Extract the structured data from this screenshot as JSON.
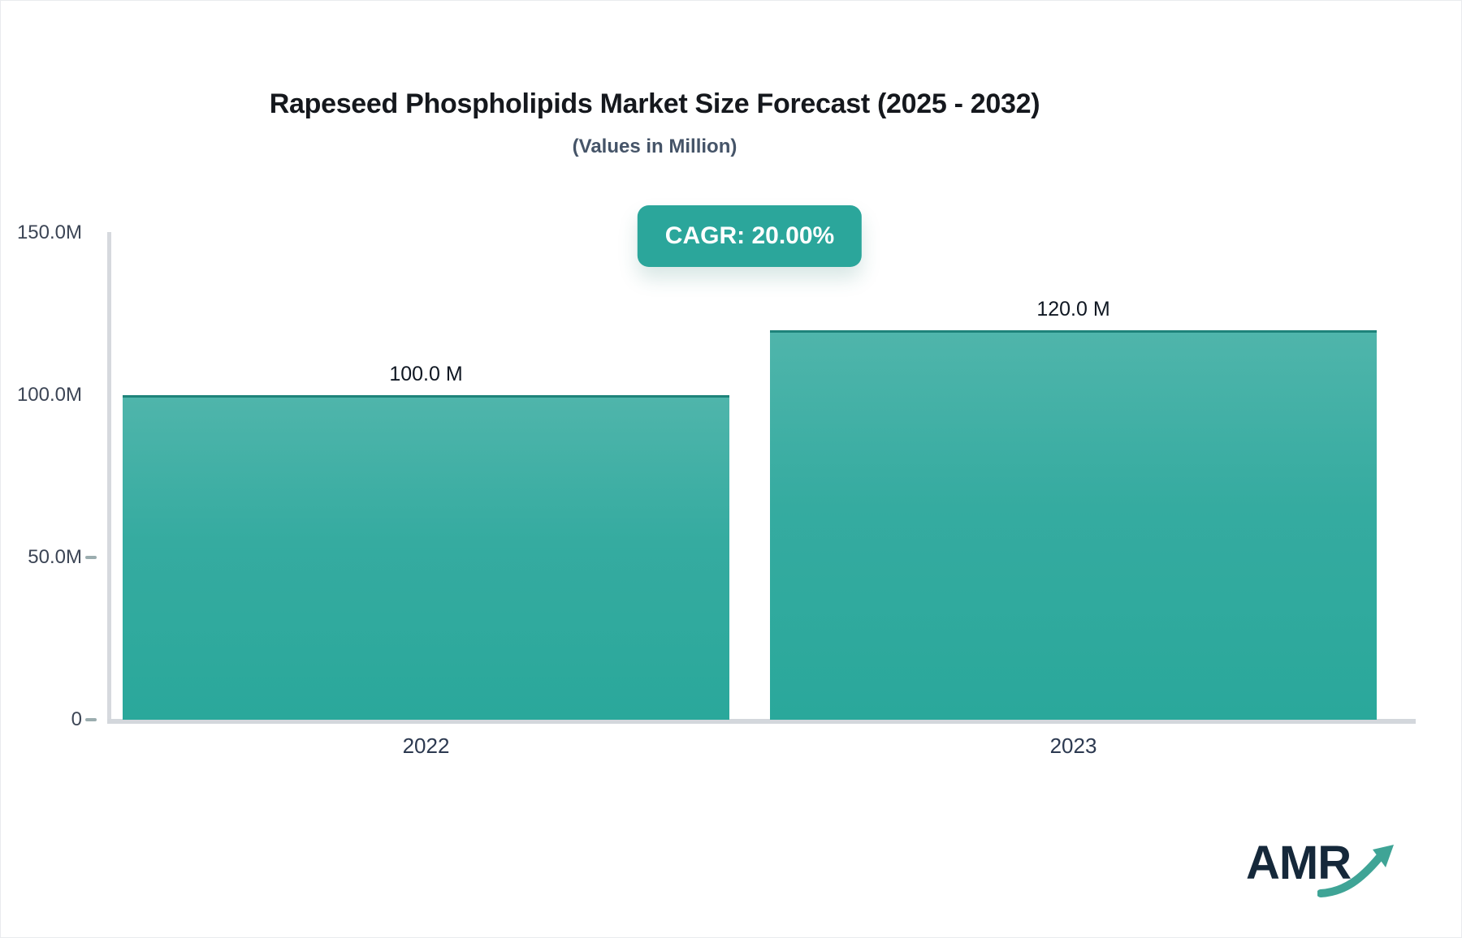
{
  "header": {
    "title": "Rapeseed Phospholipids Market Size Forecast (2025 - 2032)",
    "subtitle": "(Values in Million)"
  },
  "badge": {
    "label": "CAGR: 20.00%",
    "bg_color": "#2BA69B",
    "text_color": "#FFFFFF"
  },
  "chart_data": {
    "type": "bar",
    "title": "Rapeseed Phospholipids Market Size Forecast (2025 - 2032)",
    "subtitle": "(Values in Million)",
    "unit": "Million",
    "categories": [
      "2022",
      "2023"
    ],
    "values": [
      100.0,
      120.0
    ],
    "value_labels": [
      "100.0 M",
      "120.0 M"
    ],
    "ylim": [
      0,
      150
    ],
    "y_ticks": [
      {
        "label": "150.0M",
        "value": 150,
        "dash": false
      },
      {
        "label": "100.0M",
        "value": 100,
        "dash": false
      },
      {
        "label": "50.0M",
        "value": 50,
        "dash": true
      },
      {
        "label": "0",
        "value": 0,
        "dash": true
      }
    ],
    "grid": false,
    "legend": "none",
    "bar_color_top": "#4FB5AB",
    "bar_color_bottom": "#2AA89B",
    "bar_top_border_color": "#1E837A",
    "axis_color": "#D5D8DD",
    "annotation": "CAGR: 20.00%"
  },
  "logo": {
    "text": "AMR",
    "text_color": "#15283A",
    "arrow_color": "#3FA496"
  }
}
